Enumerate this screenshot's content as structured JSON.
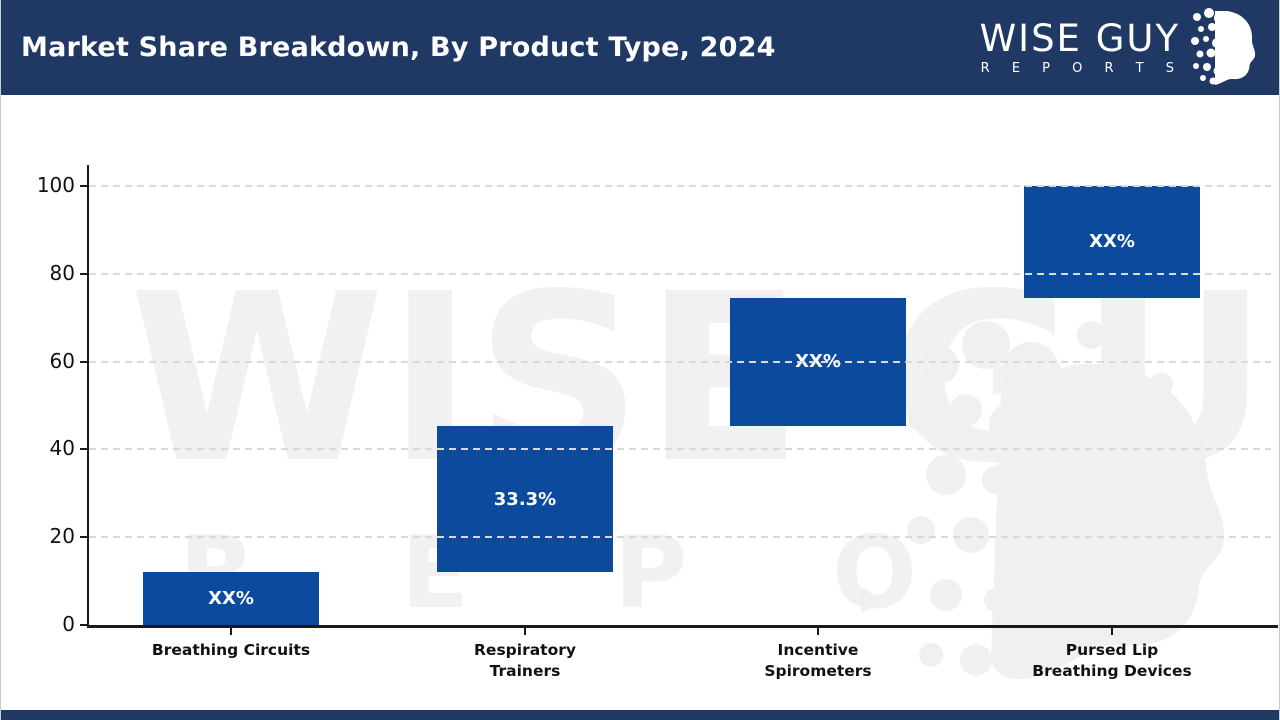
{
  "header": {
    "title": "Market Share Breakdown, By Product Type, 2024",
    "bg_color": "#1f3864",
    "logo": {
      "line1": "WISE GUY",
      "line2": "R E P O R T S"
    }
  },
  "watermark": {
    "line1": "WISE GU",
    "line2": "R E P O R T S"
  },
  "chart_data": {
    "type": "bar",
    "subtype": "floating-waterfall",
    "title": "Market Share Breakdown, By Product Type, 2024",
    "categories": [
      [
        "Breathing Circuits"
      ],
      [
        "Respiratory",
        "Trainers"
      ],
      [
        "Incentive",
        "Spirometers"
      ],
      [
        "Pursed Lip",
        "Breathing Devices"
      ]
    ],
    "segments": [
      {
        "from": 0,
        "to": 12,
        "label": "XX%"
      },
      {
        "from": 12,
        "to": 45.3,
        "label": "33.3%"
      },
      {
        "from": 45.3,
        "to": 74.6,
        "label": "XX%"
      },
      {
        "from": 74.6,
        "to": 100,
        "label": "XX%"
      }
    ],
    "ylim": [
      0,
      100
    ],
    "yticks": [
      0,
      20,
      40,
      60,
      80,
      100
    ],
    "xlabel": "",
    "ylabel": "",
    "bar_color": "#0c4a9e",
    "grid": "horizontal-dashed",
    "gridline_color": "#d9d9d9",
    "legend": "none"
  }
}
